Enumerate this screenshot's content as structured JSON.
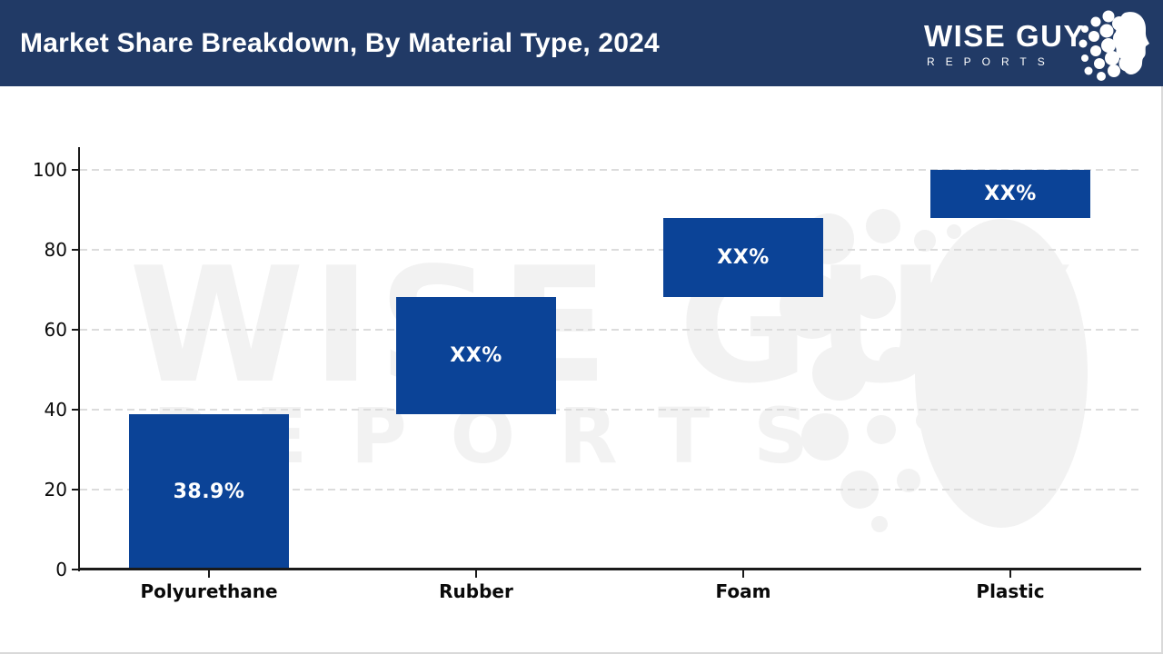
{
  "header": {
    "title": "Market Share Breakdown, By Material Type, 2024",
    "logo": {
      "wordmark": "WISE GUY",
      "subtext": "REPORTS"
    }
  },
  "watermark": {
    "line1": "WISE GUY",
    "line2": "REPORTS"
  },
  "chart_data": {
    "type": "bar",
    "subtype": "waterfall",
    "title": "Market Share Breakdown, By Material Type, 2024",
    "categories": [
      "Polyurethane",
      "Rubber",
      "Foam",
      "Plastic"
    ],
    "segments": [
      {
        "category": "Polyurethane",
        "start": 0,
        "end": 38.9,
        "label": "38.9%"
      },
      {
        "category": "Rubber",
        "start": 38.9,
        "end": 68.2,
        "label": "XX%"
      },
      {
        "category": "Foam",
        "start": 68.2,
        "end": 87.9,
        "label": "XX%"
      },
      {
        "category": "Plastic",
        "start": 87.9,
        "end": 100,
        "label": "XX%"
      }
    ],
    "yticks": [
      0,
      20,
      40,
      60,
      80,
      100
    ],
    "ylim": [
      0,
      105
    ],
    "xlabel": "",
    "ylabel": "",
    "grid": "horizontal-dashed",
    "legend": "none",
    "bar_color": "#0B4397",
    "bar_label_color": "#FFFFFF"
  },
  "colors": {
    "header_bg": "#213A66",
    "header_text": "#FFFFFF",
    "axis": "#1A1A1A",
    "gridline": "#DCDCDC",
    "watermark": "#F2F2F2",
    "page_bg": "#FFFFFF"
  }
}
